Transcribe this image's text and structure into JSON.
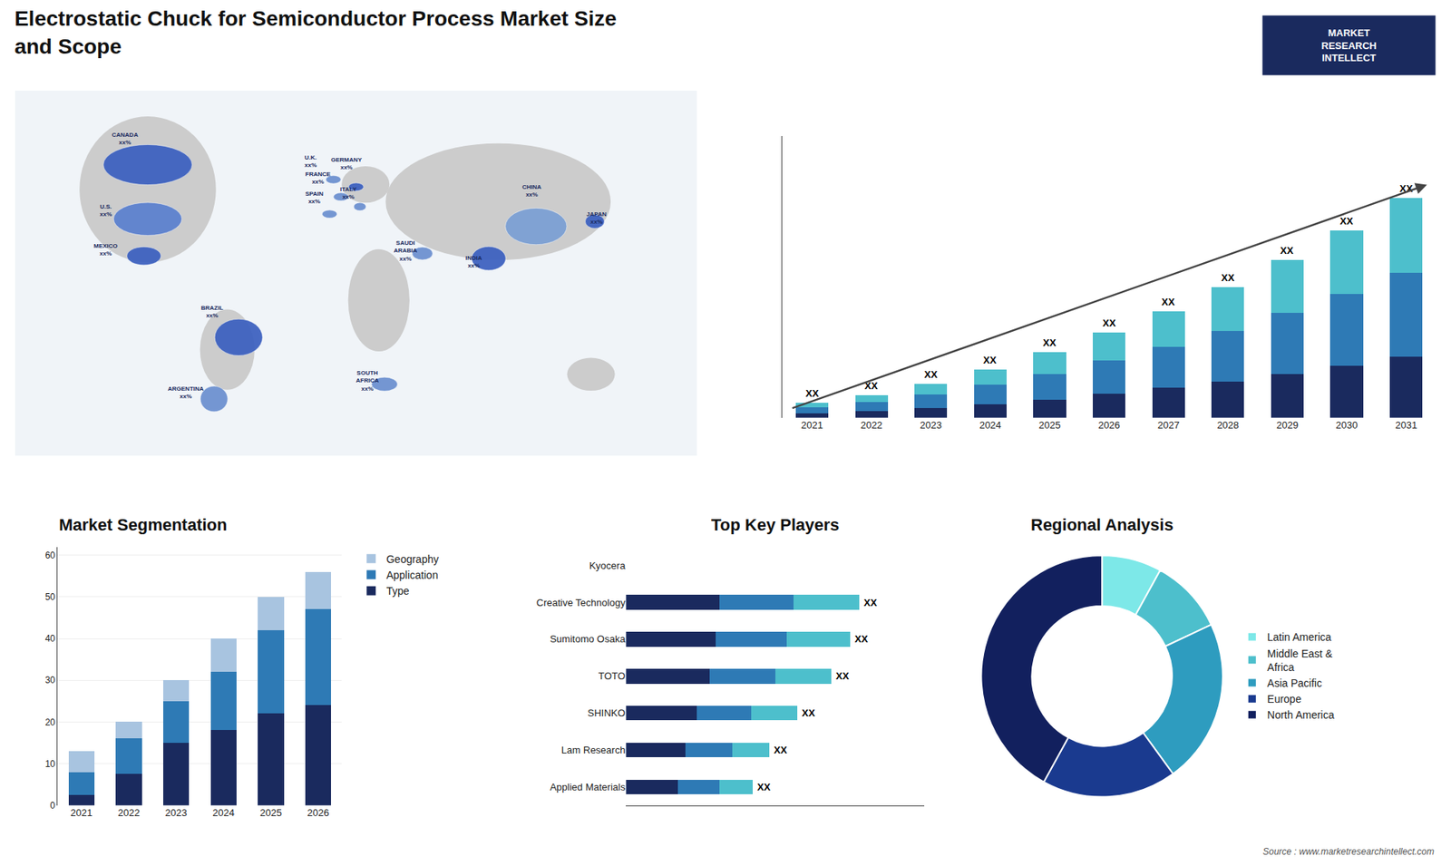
{
  "title": "Electrostatic Chuck for Semiconductor Process Market Size\nand Scope",
  "annotations": [
    "MARKET\nRESEARCH\nINTELLECT",
    "Source : www.marketresearchintellect.com"
  ],
  "chart_data": [
    {
      "type": "map",
      "annotations": [
        "CANADA\nxx%",
        "U.S.\nxx%",
        "MEXICO\nxx%",
        "BRAZIL\nxx%",
        "ARGENTINA\nxx%",
        "U.K.\nxx%",
        "FRANCE\nxx%",
        "SPAIN\nxx%",
        "GERMANY\nxx%",
        "ITALY\nxx%",
        "SAUDI\nARABIA\nxx%",
        "SOUTH\nAFRICA\nxx%",
        "CHINA\nxx%",
        "INDIA\nxx%",
        "JAPAN\nxx%"
      ]
    },
    {
      "type": "bar",
      "stacked": true,
      "categories": [
        "2021",
        "2022",
        "2023",
        "2024",
        "2025",
        "2026",
        "2027",
        "2028",
        "2029",
        "2030",
        "2031"
      ],
      "series": [
        {
          "color": "#1a2a5e",
          "values": [
            1.5,
            2.2,
            3.2,
            4.5,
            6.0,
            7.8,
            9.8,
            12.0,
            14.5,
            17.2,
            20.2
          ]
        },
        {
          "color": "#2e7ab5",
          "values": [
            2.0,
            3.0,
            4.5,
            6.5,
            8.5,
            11.0,
            13.5,
            16.5,
            20.0,
            23.5,
            27.5
          ]
        },
        {
          "color": "#4dbfcc",
          "values": [
            1.5,
            2.3,
            3.5,
            5.0,
            7.0,
            9.2,
            11.7,
            14.5,
            17.5,
            21.0,
            24.8
          ]
        }
      ],
      "ylim": [
        0,
        92.8
      ],
      "tick_labels": "x",
      "annotations": [
        {
          "category": "2021",
          "text": "XX"
        },
        {
          "category": "2022",
          "text": "XX"
        },
        {
          "category": "2023",
          "text": "XX"
        },
        {
          "category": "2024",
          "text": "XX"
        },
        {
          "category": "2025",
          "text": "XX"
        },
        {
          "category": "2026",
          "text": "XX"
        },
        {
          "category": "2027",
          "text": "XX"
        },
        {
          "category": "2028",
          "text": "XX"
        },
        {
          "category": "2029",
          "text": "XX"
        },
        {
          "category": "2030",
          "text": "XX"
        },
        {
          "category": "2031",
          "text": "XX"
        }
      ]
    },
    {
      "type": "bar",
      "title": "Market Segmentation",
      "stacked": true,
      "categories": [
        "2021",
        "2022",
        "2023",
        "2024",
        "2025",
        "2026"
      ],
      "series": [
        {
          "name": "Type",
          "color": "#1a2a5e",
          "values": [
            2.5,
            7.5,
            15,
            18,
            22,
            24
          ]
        },
        {
          "name": "Application",
          "color": "#2e7ab5",
          "values": [
            5.5,
            8.5,
            10,
            14,
            20,
            23
          ]
        },
        {
          "name": "Geography",
          "color": "#a8c4e0",
          "values": [
            5,
            4,
            5,
            8,
            8,
            9
          ]
        }
      ],
      "ylim": [
        0,
        62
      ],
      "yticks": [
        0,
        10,
        20,
        30,
        40,
        50,
        60
      ],
      "grid": true,
      "legend": "right"
    },
    {
      "type": "bar",
      "title": "Top Key Players",
      "orientation": "horizontal",
      "stacked": true,
      "categories": [
        "Kyocera",
        "Creative Technology",
        "Sumitomo Osaka",
        "TOTO",
        "SHINKO",
        "Lam Research",
        "Applied Materials"
      ],
      "series": [
        {
          "color": "#1a2a5e",
          "values": [
            0,
            5.0,
            4.8,
            4.5,
            3.8,
            3.2,
            2.8
          ]
        },
        {
          "color": "#2e7ab5",
          "values": [
            0,
            4.0,
            3.8,
            3.5,
            2.9,
            2.5,
            2.2
          ]
        },
        {
          "color": "#4dbfcc",
          "values": [
            0,
            3.5,
            3.4,
            3.0,
            2.5,
            2.0,
            1.8
          ]
        }
      ],
      "xlim": [
        0,
        16
      ],
      "tick_labels": "y",
      "annotations": [
        {
          "category": "Creative Technology",
          "text": "XX"
        },
        {
          "category": "Sumitomo Osaka",
          "text": "XX"
        },
        {
          "category": "TOTO",
          "text": "XX"
        },
        {
          "category": "SHINKO",
          "text": "XX"
        },
        {
          "category": "Lam Research",
          "text": "XX"
        },
        {
          "category": "Applied Materials",
          "text": "XX"
        }
      ]
    },
    {
      "type": "pie",
      "title": "Regional Analysis",
      "categories": [
        "Latin America",
        "Middle East &\nAfrica",
        "Asia Pacific",
        "Europe",
        "North America"
      ],
      "values": [
        8,
        10,
        22,
        18,
        42
      ],
      "colors": [
        "#7de8e8",
        "#4dbfcc",
        "#2e9cbf",
        "#1a3a8f",
        "#12205e"
      ],
      "legend": "right"
    }
  ]
}
